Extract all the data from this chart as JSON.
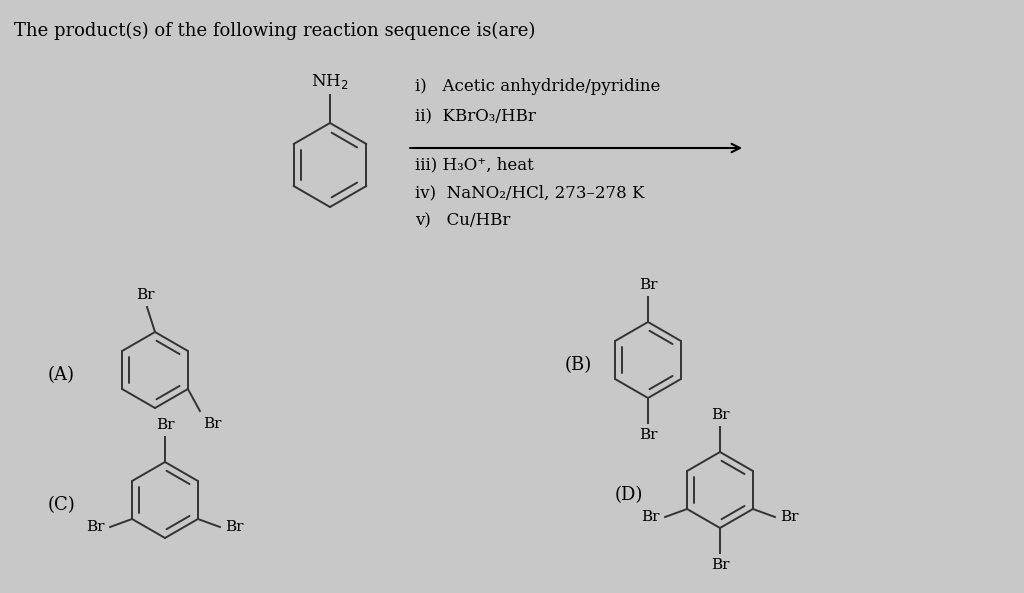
{
  "bg_color": "#c8c8c8",
  "title": "The product(s) of the following reaction sequence is(are)",
  "reaction_conditions": [
    "i)   Acetic anhydride/pyridine",
    "ii)  KBrO₃/HBr",
    "iii) H₃O⁺, heat",
    "iv)  NaNO₂/HCl, 273–278 K",
    "v)   Cu/HBr"
  ]
}
